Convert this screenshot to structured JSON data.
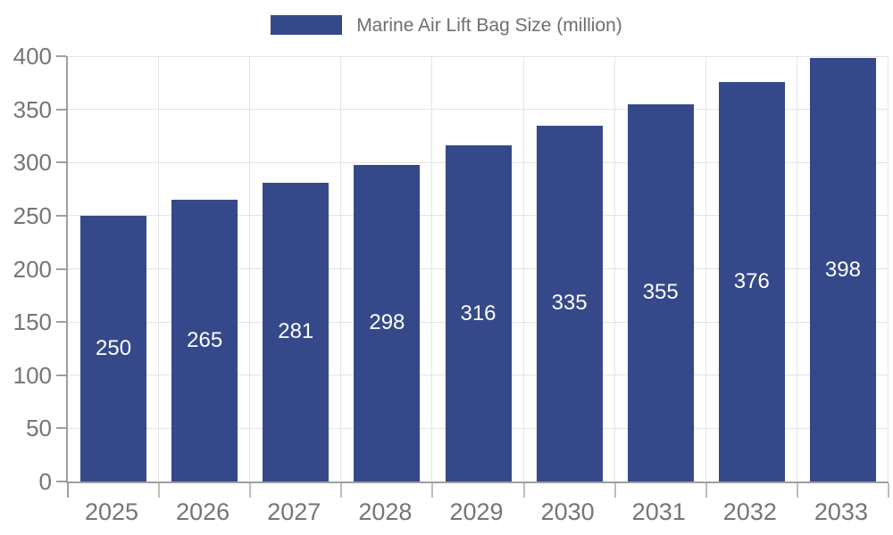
{
  "legend": {
    "label": "Marine Air Lift Bag Size (million)",
    "swatch_color": "#35498a"
  },
  "chart_data": {
    "type": "bar",
    "title": "",
    "xlabel": "",
    "ylabel": "",
    "categories": [
      "2025",
      "2026",
      "2027",
      "2028",
      "2029",
      "2030",
      "2031",
      "2032",
      "2033"
    ],
    "values": [
      250,
      265,
      281,
      298,
      316,
      335,
      355,
      376,
      398
    ],
    "series_name": "Marine Air Lift Bag Size (million)",
    "yticks": [
      0,
      50,
      100,
      150,
      200,
      250,
      300,
      350,
      400
    ],
    "ylim": [
      0,
      400
    ],
    "grid": true,
    "legend_position": "top",
    "bar_color": "#35498a",
    "value_label_color": "#ffffff",
    "tick_label_color": "#757578",
    "gridline_color": "#e4e4e4",
    "axis_color": "#9e9e9e"
  }
}
